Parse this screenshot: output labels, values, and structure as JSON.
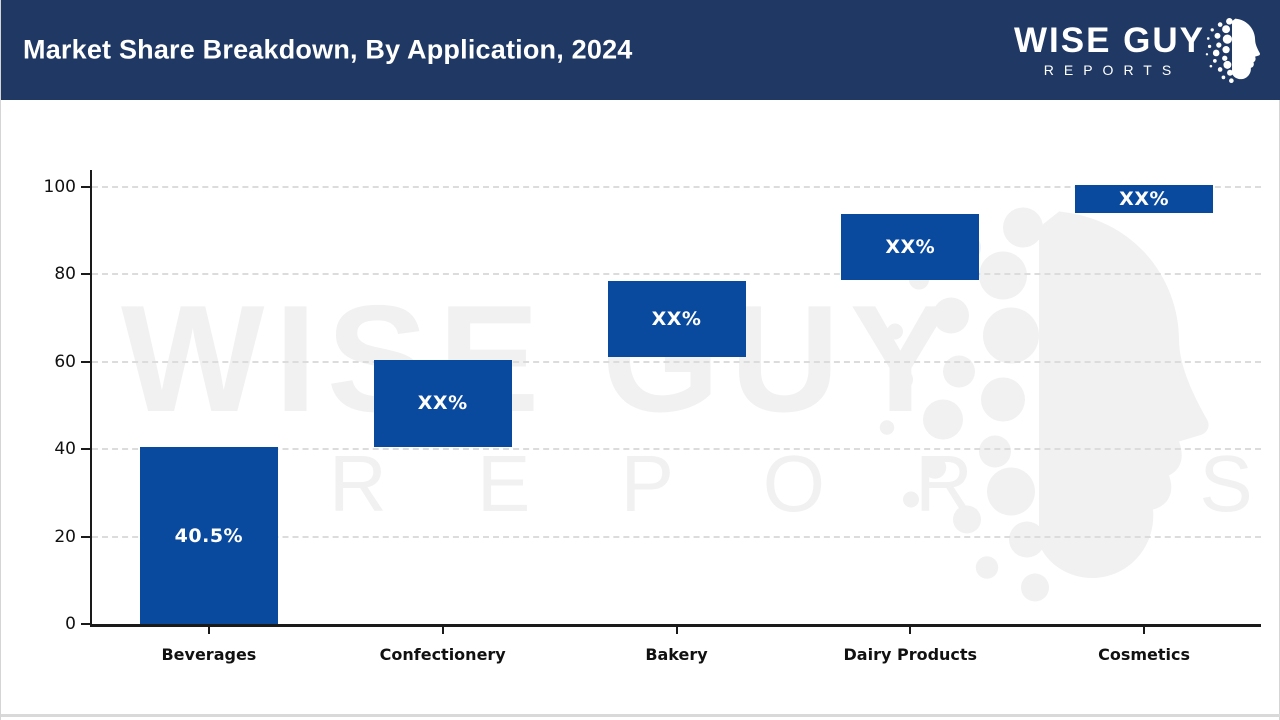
{
  "header": {
    "title": "Market Share Breakdown, By Application, 2024",
    "logo": {
      "line1": "WISE GUY",
      "line2": "REPORTS"
    }
  },
  "watermark": {
    "line1": "WISE GUY",
    "line2": "R E P O R T S"
  },
  "colors": {
    "header_bg": "#203864",
    "bar_fill": "#0a4a9e",
    "bar_label": "#ffffff",
    "gridline": "#dcdcdc",
    "axis": "#1a1a1a",
    "watermark": "#f1f1f1"
  },
  "chart_data": {
    "type": "bar",
    "subtype": "waterfall",
    "title": "Market Share Breakdown, By Application, 2024",
    "xlabel": "",
    "ylabel": "",
    "categories": [
      "Beverages",
      "Confectionery",
      "Bakery",
      "Dairy Products",
      "Cosmetics"
    ],
    "segments": [
      {
        "category": "Beverages",
        "start": 0,
        "end": 40.5,
        "label": "40.5%"
      },
      {
        "category": "Confectionery",
        "start": 40.5,
        "end": 60.5,
        "label": "XX%"
      },
      {
        "category": "Bakery",
        "start": 61,
        "end": 78.5,
        "label": "XX%"
      },
      {
        "category": "Dairy Products",
        "start": 78.8,
        "end": 93.8,
        "label": "XX%"
      },
      {
        "category": "Cosmetics",
        "start": 94,
        "end": 100.5,
        "label": "XX%"
      }
    ],
    "yticks": [
      0,
      20,
      40,
      60,
      80,
      100
    ],
    "ylim": [
      0,
      104
    ],
    "grid": "horizontal-dashed",
    "legend": "none"
  }
}
